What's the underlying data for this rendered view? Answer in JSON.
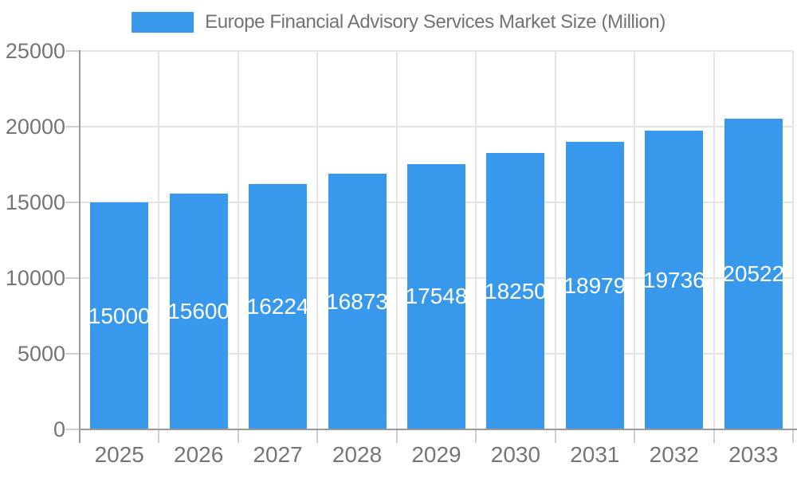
{
  "legend": {
    "label": "Europe Financial Advisory Services Market Size (Million)"
  },
  "chart_data": {
    "type": "bar",
    "title": "Europe Financial Advisory Services Market Size (Million)",
    "categories": [
      "2025",
      "2026",
      "2027",
      "2028",
      "2029",
      "2030",
      "2031",
      "2032",
      "2033"
    ],
    "values": [
      15000,
      15600,
      16224,
      16873,
      17548,
      18250,
      18979,
      19736,
      20522
    ],
    "series": [
      {
        "name": "Europe Financial Advisory Services Market Size (Million)",
        "values": [
          15000,
          15600,
          16224,
          16873,
          17548,
          18250,
          18979,
          19736,
          20522
        ]
      }
    ],
    "xlabel": "",
    "ylabel": "",
    "ylim": [
      0,
      25000
    ],
    "yticks": [
      0,
      5000,
      10000,
      15000,
      20000,
      25000
    ],
    "grid": true,
    "value_labels": "inside-center",
    "legend_position": "top-center"
  },
  "colors": {
    "bar": "#3899ec",
    "axis": "#9a9a9a",
    "grid": "#e4e4e4",
    "tick": "#cfcfcf",
    "text": "#757575",
    "legend_text": "#737373",
    "bar_label": "#ffffff"
  }
}
